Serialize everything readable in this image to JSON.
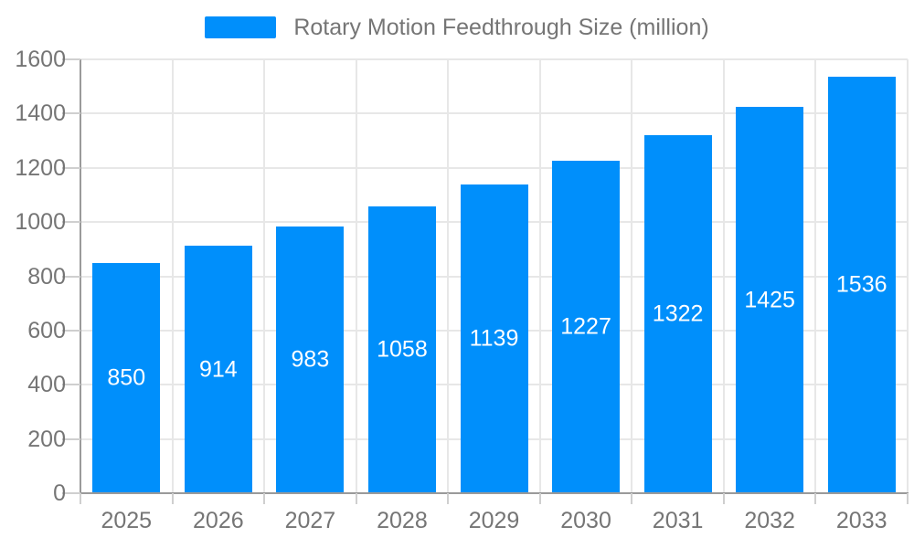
{
  "legend": {
    "items": [
      {
        "label": "Rotary Motion Feedthrough Size (million)",
        "color": "#008ffb"
      }
    ]
  },
  "chart_data": {
    "type": "bar",
    "title": "Rotary Motion Feedthrough Size (million)",
    "categories": [
      "2025",
      "2026",
      "2027",
      "2028",
      "2029",
      "2030",
      "2031",
      "2032",
      "2033"
    ],
    "values": [
      850,
      914,
      983,
      1058,
      1139,
      1227,
      1322,
      1425,
      1536
    ],
    "xlabel": "",
    "ylabel": "",
    "ylim": [
      0,
      1600
    ],
    "yticks": [
      0,
      200,
      400,
      600,
      800,
      1000,
      1200,
      1400,
      1600
    ],
    "grid": true,
    "legend_position": "top",
    "value_label_position": "inside-center",
    "colors": {
      "bar": "#008ffb",
      "bar_label": "#ffffff",
      "axis_text": "#757575",
      "axis_line": "#9a9a9a",
      "tick": "#cfcfcf",
      "gridline": "#e7e7e7",
      "background": "#ffffff"
    }
  }
}
